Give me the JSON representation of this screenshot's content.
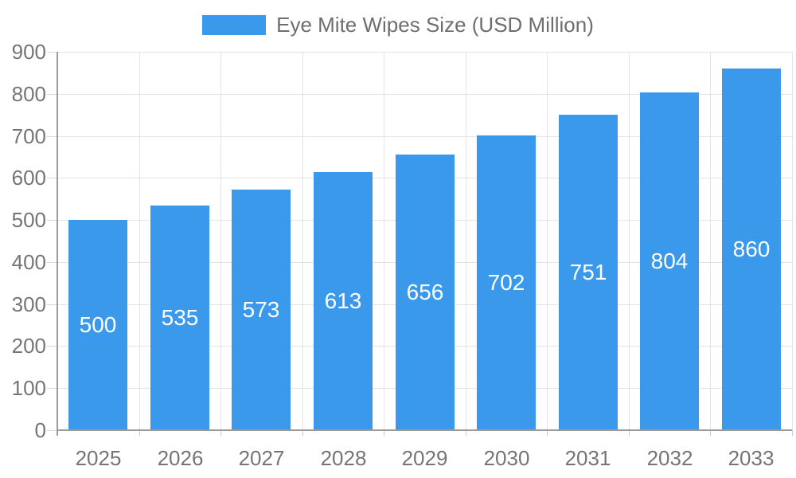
{
  "chart_data": {
    "type": "bar",
    "title": "Eye Mite Wipes Size (USD Million)",
    "categories": [
      "2025",
      "2026",
      "2027",
      "2028",
      "2029",
      "2030",
      "2031",
      "2032",
      "2033"
    ],
    "series": [
      {
        "name": "Eye Mite Wipes Size (USD Million)",
        "values": [
          500,
          535,
          573,
          613,
          656,
          702,
          751,
          804,
          860
        ]
      }
    ],
    "xlabel": "",
    "ylabel": "",
    "ylim": [
      0,
      900
    ],
    "ytick_step": 100,
    "ytick_labels": [
      "0",
      "100",
      "200",
      "300",
      "400",
      "500",
      "600",
      "700",
      "800",
      "900"
    ],
    "grid": true,
    "legend_position": "top-center",
    "value_label_position": "inside-center",
    "colors": {
      "bar": "#3B99EC",
      "value_label": "#FFFFFF",
      "axis_text": "#757575",
      "legend_text": "#6E6E6E",
      "gridline": "#E4E4E4",
      "axis_line": "#9B9B9B",
      "tick": "#C9C9C9",
      "y_tick_stub": "#D9D9D9",
      "background": "#FFFFFF"
    }
  }
}
